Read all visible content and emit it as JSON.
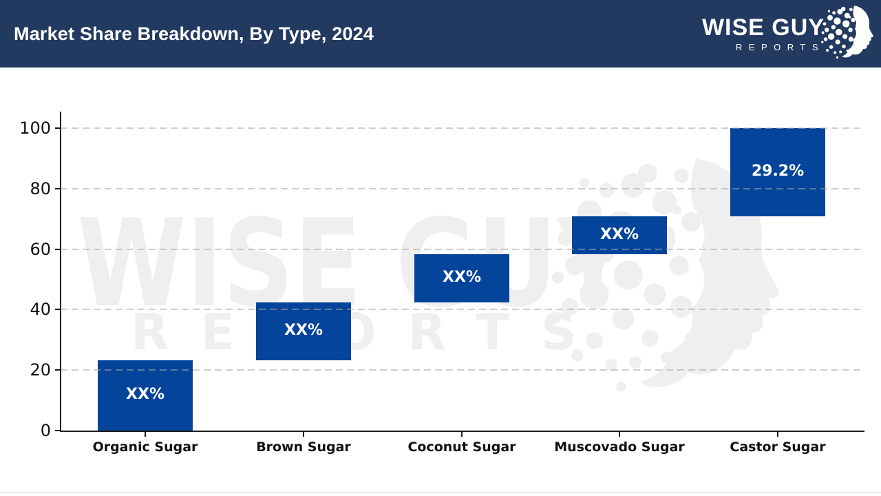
{
  "header": {
    "title": "Market Share Breakdown, By Type, 2024",
    "background_color": "#233a60",
    "logo": {
      "primary": "WISE GUY",
      "secondary": "REPORTS"
    }
  },
  "watermark": {
    "primary": "WISE GUY",
    "secondary": "REPORTS"
  },
  "chart_data": {
    "type": "bar",
    "subtype": "waterfall",
    "title": "Market Share Breakdown, By Type, 2024",
    "categories": [
      "Organic Sugar",
      "Brown Sugar",
      "Coconut Sugar",
      "Muscovado Sugar",
      "Castor Sugar"
    ],
    "segments": [
      {
        "category": "Organic Sugar",
        "start": 0,
        "end": 23.2,
        "value": 23.2,
        "label": "XX%"
      },
      {
        "category": "Brown Sugar",
        "start": 23.2,
        "end": 42.4,
        "value": 19.2,
        "label": "XX%"
      },
      {
        "category": "Coconut Sugar",
        "start": 42.4,
        "end": 58.3,
        "value": 15.9,
        "label": "XX%"
      },
      {
        "category": "Muscovado Sugar",
        "start": 58.3,
        "end": 70.8,
        "value": 12.5,
        "label": "XX%"
      },
      {
        "category": "Castor Sugar",
        "start": 70.8,
        "end": 100,
        "value": 29.2,
        "label": "29.2%"
      }
    ],
    "ylim": [
      0,
      100
    ],
    "yticks": [
      0,
      20,
      40,
      60,
      80,
      100
    ],
    "xlabel": "",
    "ylabel": "",
    "grid": "horizontal-dashed",
    "legend": "none",
    "bar_color": "#05449b",
    "bar_label_color": "#ffffff",
    "axis_color": "#1c1c1c",
    "gridline_color": "#d9d9d9"
  }
}
